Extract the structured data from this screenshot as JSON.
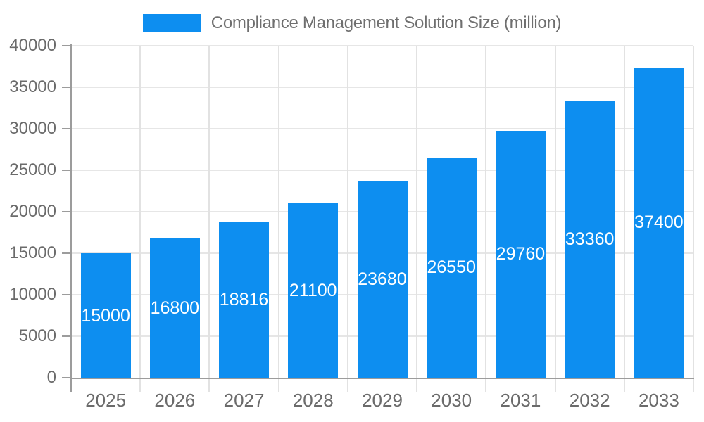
{
  "chart_data": {
    "type": "bar",
    "title": "Compliance Management Solution Size (million)",
    "categories": [
      "2025",
      "2026",
      "2027",
      "2028",
      "2029",
      "2030",
      "2031",
      "2032",
      "2033"
    ],
    "values": [
      15000,
      16800,
      18816,
      21100,
      23680,
      26550,
      29760,
      33360,
      37400
    ],
    "xlabel": "",
    "ylabel": "",
    "ylim": [
      0,
      40000
    ],
    "ytick_step": 5000,
    "yticks": [
      0,
      5000,
      10000,
      15000,
      20000,
      25000,
      30000,
      35000,
      40000
    ],
    "grid": true,
    "legend_position": "top-center",
    "colors": {
      "bar": "#0d8ef0",
      "value_label": "#ffffff",
      "axis_text": "#6b6b6b",
      "axis_line": "#9c9c9c",
      "gridline": "#e6e6e6"
    }
  }
}
